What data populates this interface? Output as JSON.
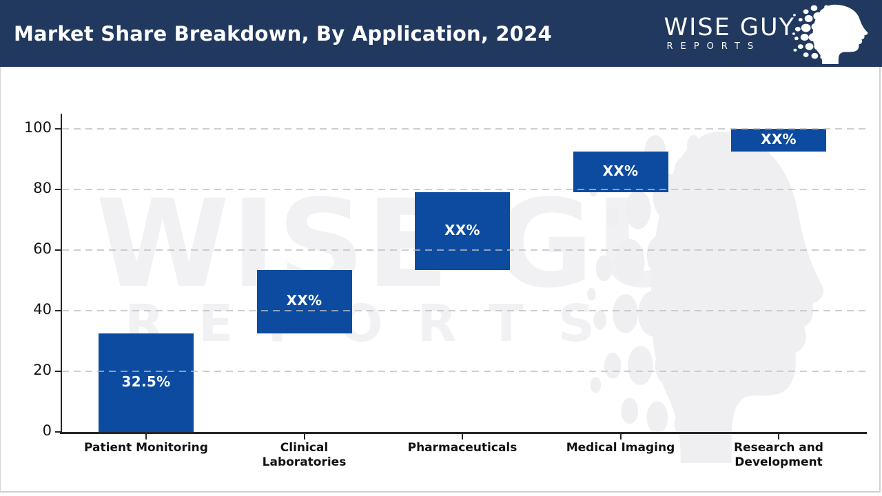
{
  "header": {
    "title": "Market Share Breakdown, By Application, 2024",
    "logo": {
      "brand": "WISE GUY",
      "sub": "REPORTS"
    }
  },
  "watermark": {
    "brand": "WISE GUY",
    "sub": "REPORTS"
  },
  "chart_data": {
    "type": "bar",
    "subtype": "waterfall",
    "title": "Market Share Breakdown, By Application, 2024",
    "xlabel": "",
    "ylabel": "",
    "ylim": [
      0,
      105
    ],
    "yticks": [
      0,
      20,
      40,
      60,
      80,
      100
    ],
    "grid": true,
    "grid_style": "dashed",
    "legend": false,
    "categories": [
      "Patient Monitoring",
      "Clinical Laboratories",
      "Pharmaceuticals",
      "Medical Imaging",
      "Research and Development"
    ],
    "segments": [
      {
        "name": "Patient Monitoring",
        "label_lines": [
          "Patient Monitoring"
        ],
        "start": 0,
        "end": 32.5,
        "label": "32.5%"
      },
      {
        "name": "Clinical Laboratories",
        "label_lines": [
          "Clinical",
          "Laboratories"
        ],
        "start": 32.5,
        "end": 53.5,
        "label": "XX%"
      },
      {
        "name": "Pharmaceuticals",
        "label_lines": [
          "Pharmaceuticals"
        ],
        "start": 53.5,
        "end": 79,
        "label": "XX%"
      },
      {
        "name": "Medical Imaging",
        "label_lines": [
          "Medical Imaging"
        ],
        "start": 79,
        "end": 92.5,
        "label": "XX%"
      },
      {
        "name": "Research and Development",
        "label_lines": [
          "Research and",
          "Development"
        ],
        "start": 92.5,
        "end": 100,
        "label": "XX%"
      }
    ]
  },
  "colors": {
    "header_bg": "#21395f",
    "header_text": "#ffffff",
    "bar": "#0c4b9f",
    "bar_label": "#ffffff",
    "axis": "#262626",
    "tick_label": "#141414",
    "watermark": "#f1f1f4",
    "border": "#d0d0d4"
  }
}
